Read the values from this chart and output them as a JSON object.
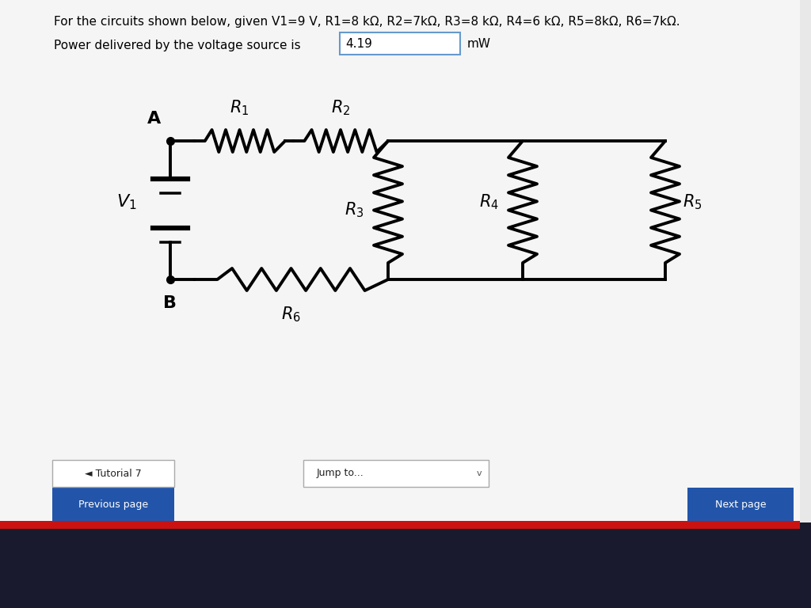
{
  "title_text": "For the circuits shown below, given V1=9 V, R1=8 kΩ, R2=7kΩ, R3=8 kΩ, R4=6 kΩ, R5=8kΩ, R6=7kΩ.",
  "power_text": "Power delivered by the voltage source is",
  "power_value": "4.19",
  "power_unit": "mW",
  "bg_color": "#e8e8e8",
  "white_area_color": "#f5f5f5",
  "line_color": "#000000",
  "line_width": 2.8,
  "button_prev_color": "#2255aa",
  "button_next_color": "#2255aa",
  "button_prev_text": "Previous page",
  "button_next_text": "Next page",
  "nav_text": "◄ Tutorial 7",
  "jump_text": "Jump to...",
  "dark_bar_color": "#1a1a2e",
  "red_stripe_color": "#cc1111"
}
